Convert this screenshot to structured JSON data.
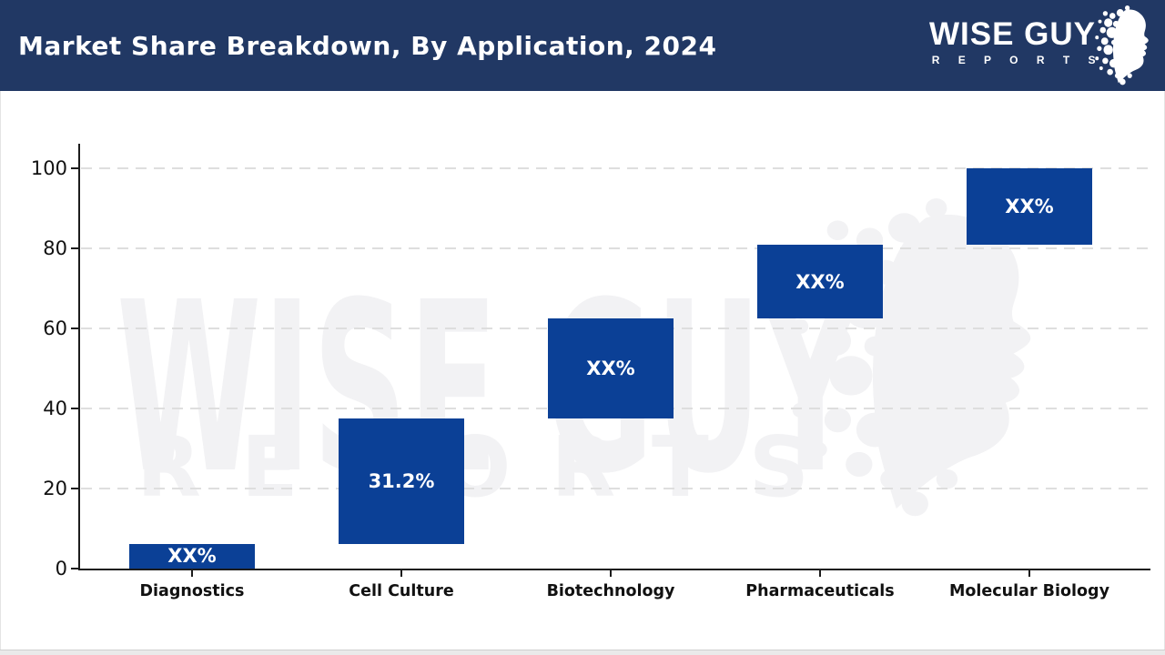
{
  "header": {
    "title": "Market Share Breakdown, By Application, 2024",
    "logo": {
      "name": "WISE GUY",
      "sub": "R E P O R T S"
    }
  },
  "watermark": {
    "line1": "WISE GUY",
    "line2": "REPORTS"
  },
  "chart_data": {
    "type": "bar",
    "subtype": "floating-segment-waterfall",
    "title": "Market Share Breakdown, By Application, 2024",
    "categories": [
      "Diagnostics",
      "Cell Culture",
      "Biotechnology",
      "Pharmaceuticals",
      "Molecular Biology"
    ],
    "segments": [
      {
        "category": "Diagnostics",
        "start": 0,
        "end": 6.2,
        "label": "XX%"
      },
      {
        "category": "Cell Culture",
        "start": 6.2,
        "end": 37.4,
        "label": "31.2%"
      },
      {
        "category": "Biotechnology",
        "start": 37.4,
        "end": 62.4,
        "label": "XX%"
      },
      {
        "category": "Pharmaceuticals",
        "start": 62.4,
        "end": 81,
        "label": "XX%"
      },
      {
        "category": "Molecular Biology",
        "start": 81,
        "end": 100,
        "label": "XX%"
      }
    ],
    "ylim": [
      0,
      100
    ],
    "yticks": [
      0,
      20,
      40,
      60,
      80,
      100
    ],
    "xlabel": "",
    "ylabel": "",
    "grid": "horizontal-dashed",
    "legend": "none",
    "bar_color": "#0b4096",
    "bar_label_color": "#ffffff"
  },
  "colors": {
    "header_bg": "#213864",
    "page_bg": "#ffffff",
    "bar": "#0b4096",
    "axis": "#1c1c1c",
    "grid": "#dedede",
    "tick_label": "#111111",
    "watermark": "#f2f2f4",
    "logo_text": "#ffffff"
  }
}
